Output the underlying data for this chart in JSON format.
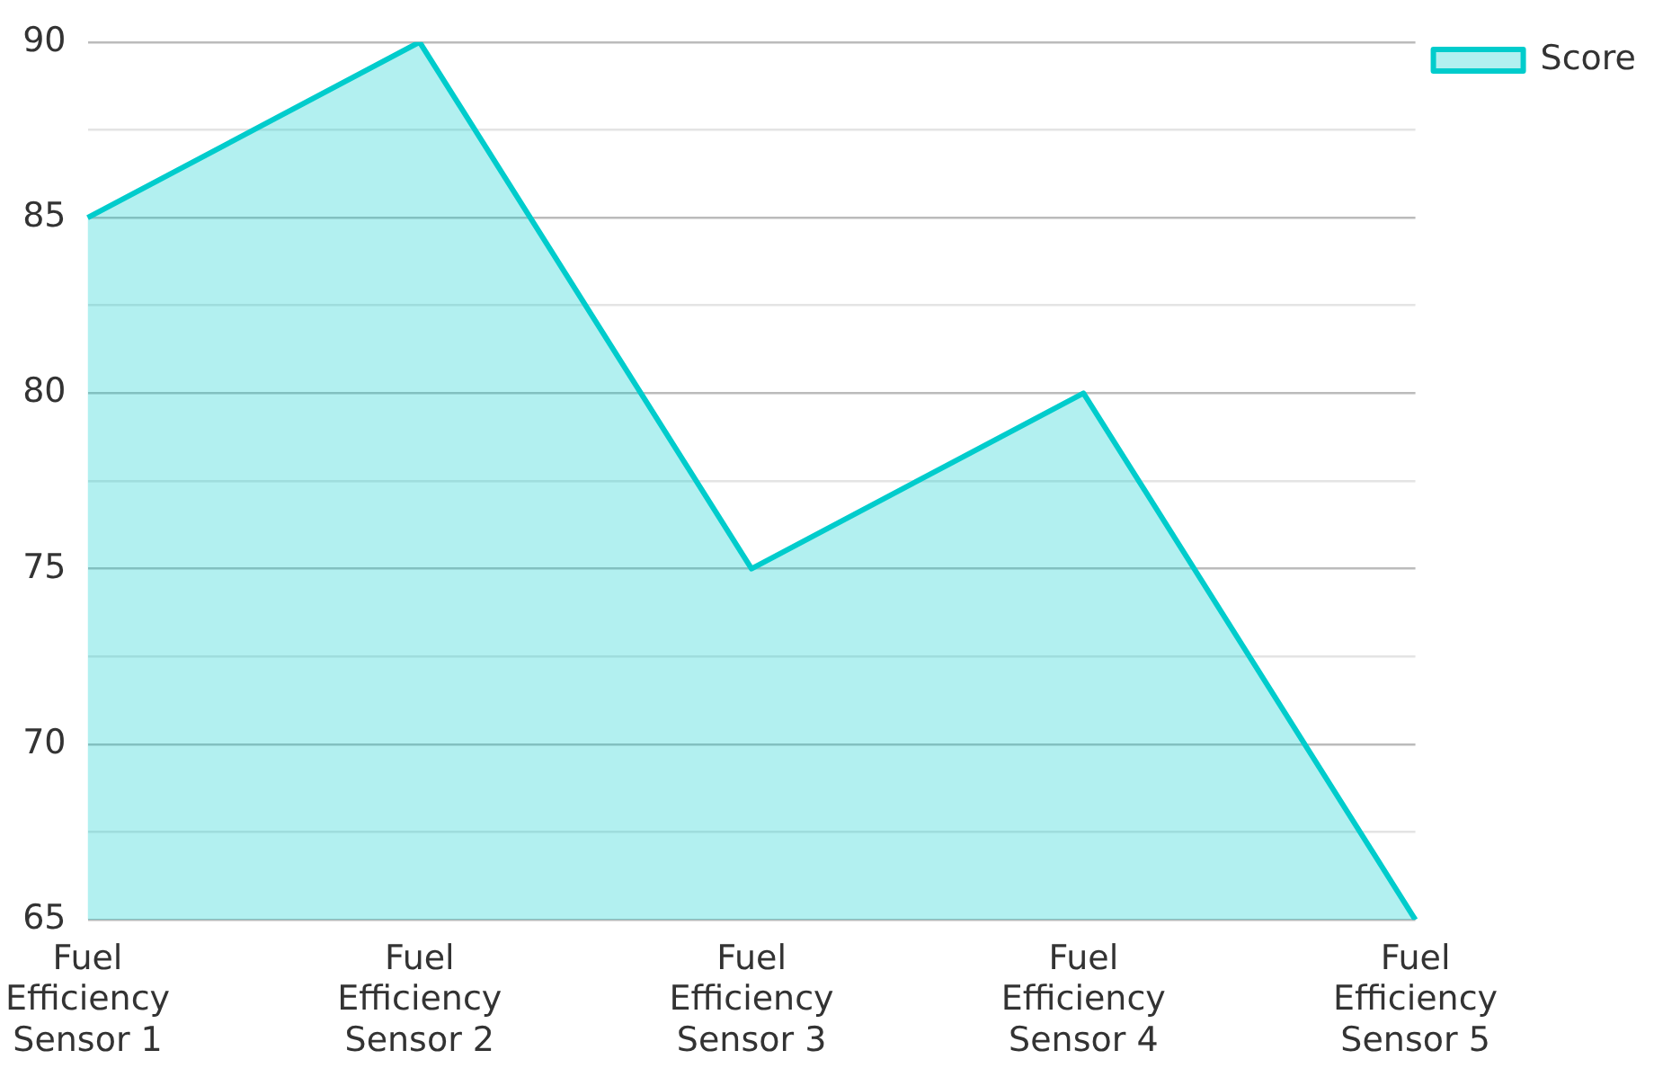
{
  "chart_data": {
    "type": "area",
    "categories": [
      "Fuel Efficiency Sensor 1",
      "Fuel Efficiency Sensor 2",
      "Fuel Efficiency Sensor 3",
      "Fuel Efficiency Sensor 4",
      "Fuel Efficiency Sensor 5"
    ],
    "series": [
      {
        "name": "Score",
        "color": "#00cccc",
        "values": [
          85,
          90,
          75,
          80,
          65
        ]
      }
    ],
    "ylim": [
      65,
      90
    ],
    "yticks": [
      65,
      {
        "value": 67.5,
        "label": null
      },
      70,
      {
        "value": 72.5,
        "label": null
      },
      75,
      {
        "value": 77.5,
        "label": null
      },
      80,
      {
        "value": 82.5,
        "label": null
      },
      85,
      {
        "value": 87.5,
        "label": null
      },
      90
    ],
    "grid": "y",
    "legend": "top right"
  }
}
